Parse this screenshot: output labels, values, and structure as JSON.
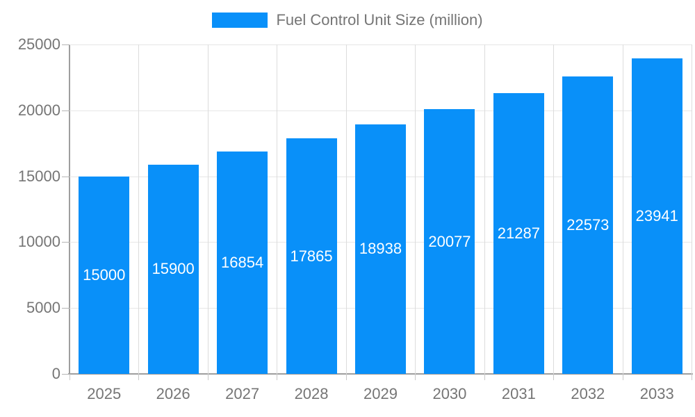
{
  "legend": {
    "label": "Fuel Control Unit Size (million)"
  },
  "colors": {
    "bar": "#0990f9",
    "axis": "#9e9e9e",
    "grid_horizontal": "#e6e6e6",
    "grid_vertical": "#dcdcdc",
    "tick": "#b5b5b5",
    "axis_text": "#757575",
    "value_label_text": "#ffffff",
    "background": "#ffffff"
  },
  "chart_data": {
    "type": "bar",
    "title": "Fuel Control Unit Size (million)",
    "categories": [
      "2025",
      "2026",
      "2027",
      "2028",
      "2029",
      "2030",
      "2031",
      "2032",
      "2033"
    ],
    "values": [
      15000,
      15900,
      16854,
      17865,
      18938,
      20077,
      21287,
      22573,
      23941
    ],
    "xlabel": "",
    "ylabel": "",
    "ylim": [
      0,
      25000
    ],
    "ytick_step": 5000,
    "ytick_labels": [
      "0",
      "5000",
      "10000",
      "15000",
      "20000",
      "25000"
    ],
    "grid": true,
    "legend_position": "top",
    "bar_value_labels_inside": true
  }
}
